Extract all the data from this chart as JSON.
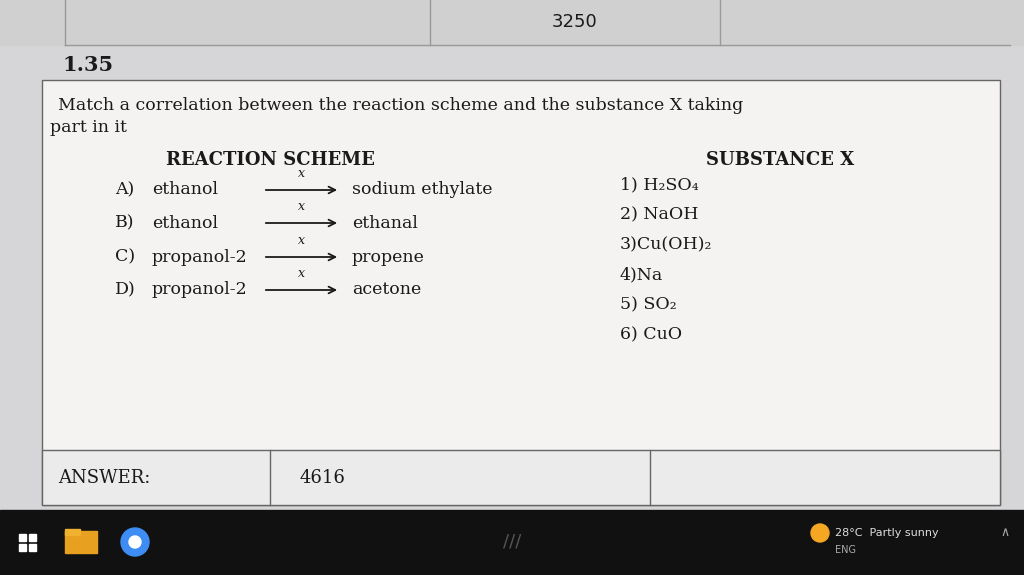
{
  "title_number": "1.35",
  "question_line1": "Match a correlation between the reaction scheme and the substance X taking",
  "question_line2": "part in it",
  "reaction_scheme_header": "REACTION SCHEME",
  "substance_header": "SUBSTANCE X",
  "reactions": [
    {
      "label": "A)",
      "left": "ethanol",
      "right": "sodium ethylate"
    },
    {
      "label": "B)",
      "left": "ethanol",
      "right": "ethanal"
    },
    {
      "label": "C)",
      "left": "propanol-2",
      "right": "propene"
    },
    {
      "label": "D)",
      "left": "propanol-2",
      "right": "acetone"
    }
  ],
  "substances": [
    {
      "num": "1) ",
      "text": "H₂SO₄"
    },
    {
      "num": "2) ",
      "text": "NaOH"
    },
    {
      "num": "3)",
      "text": "Cu(OH)₂"
    },
    {
      "num": "4)",
      "text": "Na"
    },
    {
      "num": "5) ",
      "text": "SO₂"
    },
    {
      "num": "6) ",
      "text": "CuO"
    }
  ],
  "answer_label": "ANSWER:",
  "answer_value": "4616",
  "page_bg": "#d6d6d8",
  "content_bg": "#f0efee",
  "box_bg": "#f4f3f2",
  "text_color": "#1a1a1a",
  "arrow_color": "#1a1a1a",
  "border_color": "#666666",
  "taskbar_color": "#0f0f0f",
  "top_strip_color": "#c8c8c8"
}
